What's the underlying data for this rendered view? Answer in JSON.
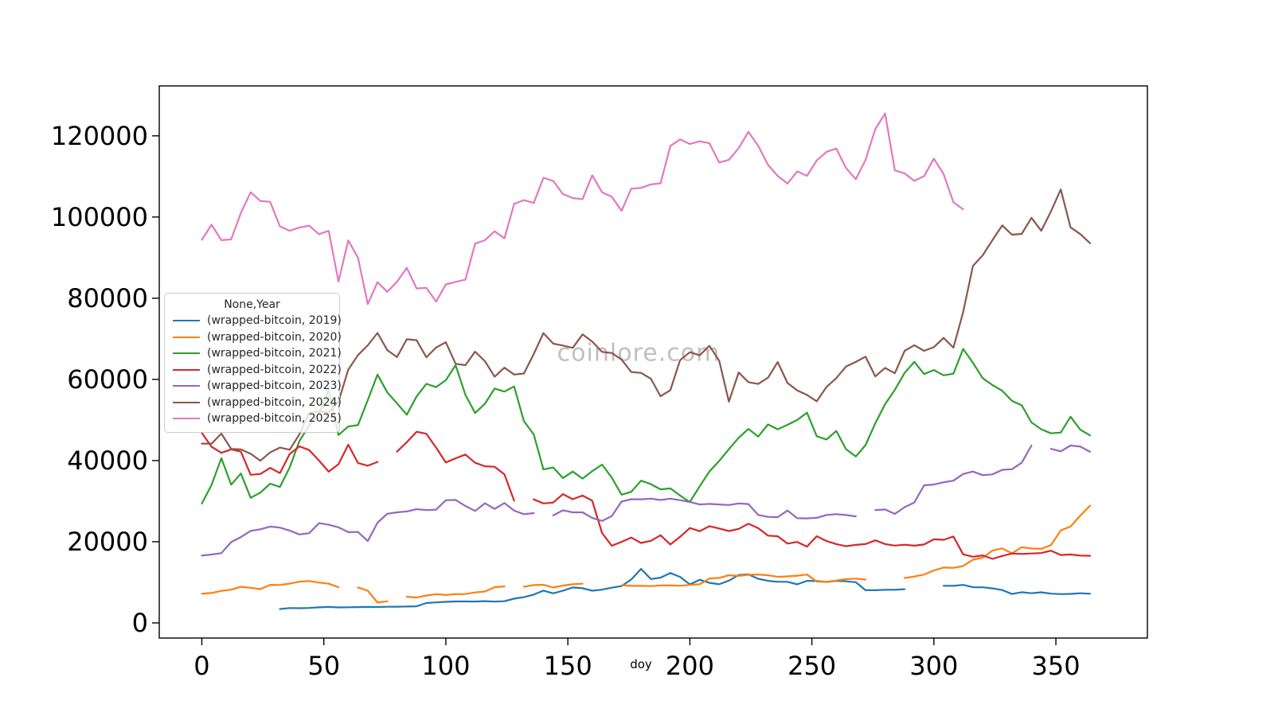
{
  "watermark": "coinlore.com",
  "chart_data": {
    "type": "line",
    "title": "",
    "xlabel": "doy",
    "ylabel": "",
    "legend_title": "None,Year",
    "legend_position": "center-left",
    "grid": false,
    "x_ticks": [
      0,
      50,
      100,
      150,
      200,
      250,
      300,
      350
    ],
    "y_ticks": [
      0,
      20000,
      40000,
      60000,
      80000,
      100000,
      120000
    ],
    "xlim": [
      -17.45,
      387.5
    ],
    "ylim": [
      -3724,
      132300
    ],
    "x_unit": "day of year",
    "day_start": 0,
    "day_step": 4,
    "series": [
      {
        "label": "(wrapped-bitcoin, 2019)",
        "year": 2019,
        "color": "#1f77b4",
        "values": [
          null,
          null,
          null,
          null,
          null,
          null,
          null,
          null,
          3430,
          3660,
          3630,
          3680,
          3840,
          3940,
          3830,
          3860,
          3900,
          3940,
          3920,
          3980,
          4000,
          4030,
          4090,
          4900,
          5050,
          5200,
          5300,
          5290,
          5280,
          5370,
          5260,
          5350,
          5970,
          6350,
          6980,
          7950,
          7290,
          7940,
          8740,
          8550,
          7930,
          8200,
          8690,
          9080,
          10700,
          13300,
          10820,
          11150,
          12290,
          11350,
          9480,
          10650,
          9880,
          9530,
          10400,
          11810,
          11950,
          10880,
          10360,
          10130,
          10140,
          9510,
          10370,
          10310,
          10100,
          10350,
          10250,
          10030,
          8060,
          8050,
          8150,
          8180,
          8310,
          null,
          9230,
          null,
          9160,
          9140,
          9360,
          8810,
          8780,
          8510,
          8100,
          7130,
          7570,
          7320,
          7550,
          7220,
          7090,
          7150,
          7320,
          7190
        ]
      },
      {
        "label": "(wrapped-bitcoin, 2020)",
        "year": 2020,
        "color": "#ff7f0e",
        "values": [
          7200,
          7360,
          7900,
          8190,
          8890,
          8660,
          8330,
          9390,
          9340,
          9690,
          10160,
          10330,
          9930,
          9660,
          8790,
          null,
          8750,
          7940,
          5020,
          5340,
          null,
          6440,
          6250,
          6740,
          7100,
          6880,
          7100,
          7110,
          7510,
          7750,
          8800,
          9020,
          null,
          8900,
          9320,
          9380,
          8720,
          9200,
          9530,
          9660,
          null,
          9450,
          null,
          9300,
          9130,
          9140,
          9070,
          9230,
          9240,
          9160,
          9370,
          9530,
          10940,
          11090,
          11740,
          11580,
          11850,
          11940,
          11750,
          11350,
          11460,
          11650,
          11920,
          10170,
          10130,
          10440,
          10780,
          10920,
          10690,
          null,
          10620,
          null,
          11060,
          11420,
          11910,
          12930,
          13650,
          13560,
          14020,
          15590,
          16070,
          17810,
          18370,
          17150,
          18650,
          18320,
          18250,
          19170,
          22800,
          23740,
          26440,
          28900
        ]
      },
      {
        "label": "(wrapped-bitcoin, 2021)",
        "year": 2021,
        "color": "#2ca02c",
        "values": [
          29400,
          34000,
          40600,
          34050,
          36800,
          30830,
          32100,
          34300,
          33500,
          38300,
          44850,
          48600,
          51600,
          57400,
          46300,
          48400,
          48750,
          54900,
          61200,
          56800,
          54100,
          51300,
          55800,
          58900,
          58100,
          59800,
          63500,
          56200,
          51700,
          54000,
          57750,
          57000,
          58250,
          49700,
          46450,
          37800,
          38300,
          35700,
          37300,
          35550,
          37400,
          39000,
          35800,
          31600,
          32300,
          35040,
          34200,
          32900,
          33140,
          31380,
          29790,
          33650,
          37300,
          39900,
          42800,
          45600,
          47800,
          45900,
          48900,
          47700,
          48800,
          50000,
          51800,
          46000,
          45200,
          47300,
          42800,
          41000,
          43800,
          49200,
          53900,
          57400,
          61600,
          64300,
          61300,
          62300,
          61000,
          61400,
          67500,
          64100,
          60300,
          58600,
          57200,
          54700,
          53600,
          49400,
          47700,
          46700,
          46900,
          50800,
          47600,
          46200
        ]
      },
      {
        "label": "(wrapped-bitcoin, 2022)",
        "year": 2022,
        "color": "#d62728",
        "values": [
          46800,
          43400,
          41900,
          42750,
          42200,
          36500,
          36700,
          38200,
          36900,
          41600,
          43500,
          42600,
          40000,
          37250,
          39100,
          43900,
          39400,
          38730,
          39670,
          null,
          42190,
          44540,
          47100,
          46600,
          43200,
          39530,
          40550,
          41500,
          39450,
          38600,
          38470,
          36600,
          30100,
          null,
          30440,
          29440,
          29650,
          31730,
          30470,
          31370,
          30100,
          22140,
          19020,
          19970,
          21030,
          19700,
          20230,
          21600,
          19330,
          21200,
          23390,
          22600,
          23840,
          23270,
          22630,
          23170,
          24440,
          23340,
          21500,
          21370,
          19550,
          19950,
          18800,
          21360,
          20170,
          19420,
          18900,
          19230,
          19430,
          20340,
          19420,
          19050,
          19260,
          19040,
          19330,
          20590,
          20480,
          21300,
          16900,
          16300,
          16650,
          15780,
          16500,
          17100,
          17000,
          17120,
          17200,
          17800,
          16740,
          16850,
          16600,
          16550
        ]
      },
      {
        "label": "(wrapped-bitcoin, 2023)",
        "year": 2023,
        "color": "#9467bd",
        "values": [
          16600,
          16850,
          17180,
          19910,
          21140,
          22670,
          23060,
          23740,
          23490,
          22760,
          21790,
          22100,
          24570,
          24180,
          23550,
          22360,
          22410,
          20160,
          24700,
          26900,
          27250,
          27460,
          28030,
          27800,
          27920,
          30230,
          30300,
          28820,
          27590,
          29480,
          28090,
          29530,
          27650,
          26800,
          27040,
          null,
          26470,
          27750,
          27250,
          27240,
          25850,
          25120,
          26330,
          29900,
          30480,
          30450,
          30620,
          30290,
          30620,
          30240,
          29800,
          29180,
          29320,
          29180,
          29040,
          29430,
          29280,
          26600,
          26120,
          26050,
          27700,
          25800,
          25750,
          25900,
          26600,
          26800,
          26570,
          26250,
          null,
          27790,
          27940,
          26860,
          28520,
          29680,
          33900,
          34090,
          34650,
          35050,
          36700,
          37300,
          36400,
          36600,
          37720,
          37860,
          39470,
          43700,
          null,
          42890,
          42270,
          43700,
          43450,
          42150
        ]
      },
      {
        "label": "(wrapped-bitcoin, 2024)",
        "year": 2024,
        "color": "#8c564b",
        "values": [
          44180,
          44150,
          46650,
          42850,
          42740,
          41670,
          39960,
          42030,
          43190,
          42660,
          46500,
          51800,
          52120,
          51850,
          54500,
          62400,
          66000,
          68400,
          71450,
          67210,
          65500,
          69900,
          69650,
          65450,
          67840,
          69140,
          63840,
          63510,
          66840,
          64480,
          60640,
          62890,
          61190,
          61450,
          66250,
          71400,
          68810,
          68350,
          67750,
          71080,
          69310,
          66770,
          66500,
          64870,
          61810,
          61600,
          60170,
          55850,
          57340,
          64740,
          66690,
          65930,
          68260,
          64620,
          54500,
          61710,
          59300,
          58880,
          60400,
          64270,
          59120,
          57300,
          56180,
          54600,
          58130,
          60310,
          63150,
          64300,
          65600,
          60750,
          62820,
          61500,
          67040,
          68420,
          67030,
          67930,
          70220,
          67810,
          76550,
          87950,
          90560,
          94290,
          97950,
          95650,
          95840,
          99800,
          96600,
          101400,
          106800,
          97460,
          95800,
          93560
        ]
      },
      {
        "label": "(wrapped-bitcoin, 2025)",
        "year": 2025,
        "color": "#e377c2",
        "values": [
          94400,
          98100,
          94300,
          94500,
          101000,
          106100,
          103960,
          103740,
          97700,
          96600,
          97440,
          97870,
          95780,
          96580,
          84100,
          94250,
          89960,
          78530,
          83970,
          81580,
          84040,
          87470,
          82400,
          82550,
          79160,
          83400,
          84030,
          84550,
          93440,
          94300,
          96490,
          94750,
          103240,
          104170,
          103450,
          109670,
          108900,
          105640,
          104670,
          104400,
          110280,
          106090,
          105000,
          101530,
          106980,
          107170,
          108040,
          108300,
          117530,
          119110,
          118000,
          118630,
          118210,
          113450,
          114100,
          116950,
          121000,
          117540,
          112870,
          110130,
          108240,
          111250,
          110160,
          113940,
          116060,
          116870,
          112080,
          109300,
          114060,
          121700,
          125500,
          111500,
          110750,
          108900,
          110100,
          114400,
          110590,
          103600,
          101900,
          null,
          null,
          null,
          null,
          null,
          null,
          null,
          null,
          null,
          null,
          null,
          null,
          null
        ]
      }
    ]
  }
}
